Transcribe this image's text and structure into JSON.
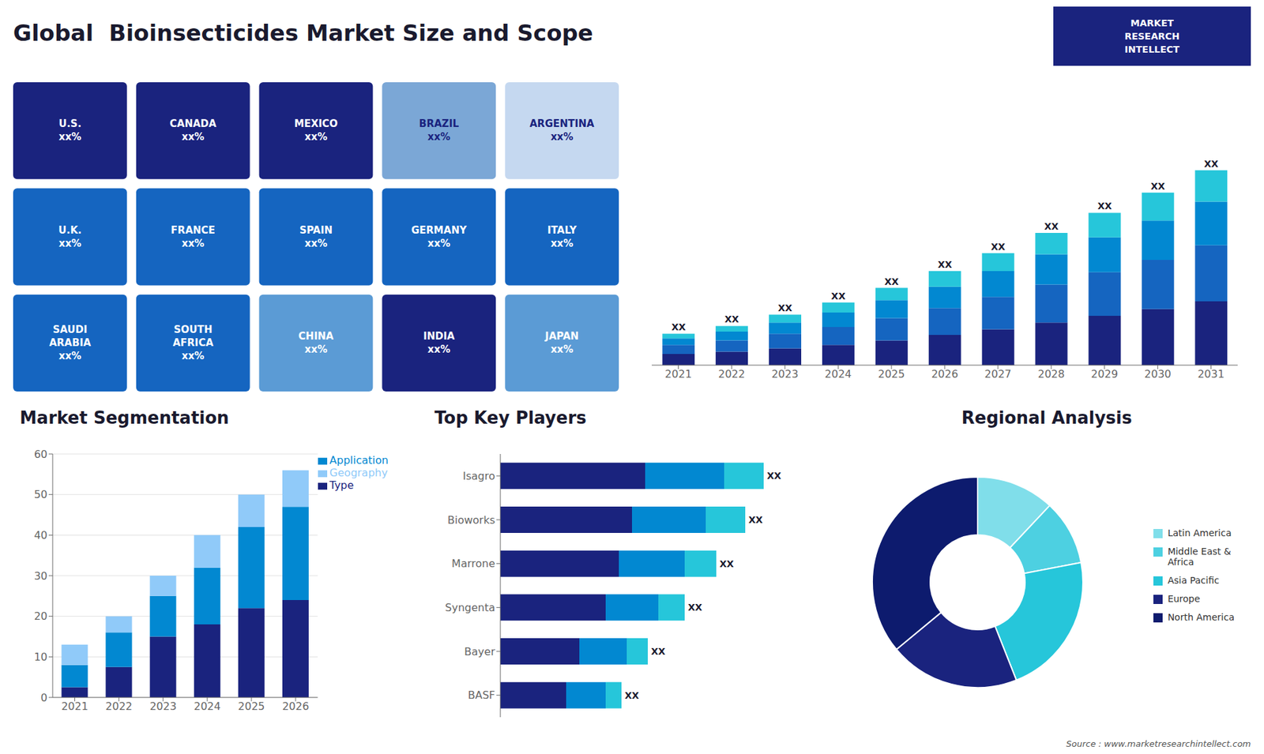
{
  "title": "Global  Bioinsecticides Market Size and Scope",
  "annotations": [
    "MARKET\nRESEARCH\nINTELLECT",
    "Source : www.marketresearchintellect.com"
  ],
  "chart_data": [
    {
      "type": "map",
      "categories": [
        "U.S.",
        "CANADA",
        "MEXICO",
        "BRAZIL",
        "ARGENTINA",
        "U.K.",
        "FRANCE",
        "SPAIN",
        "GERMANY",
        "ITALY",
        "SAUDI\nARABIA",
        "SOUTH\nAFRICA",
        "CHINA",
        "INDIA",
        "JAPAN"
      ],
      "annotations": [
        "xx%",
        "xx%",
        "xx%",
        "xx%",
        "xx%",
        "xx%",
        "xx%",
        "xx%",
        "xx%",
        "xx%",
        "xx%",
        "xx%",
        "xx%",
        "xx%",
        "xx%"
      ],
      "colors": [
        "#1a237e",
        "#1a237e",
        "#1a237e",
        "#7ba7d6",
        "#c5d8f0",
        "#1565c0",
        "#1565c0",
        "#1565c0",
        "#1565c0",
        "#1565c0",
        "#1565c0",
        "#1565c0",
        "#5b9bd5",
        "#1a237e",
        "#5b9bd5"
      ]
    },
    {
      "type": "bar",
      "stacked": true,
      "categories": [
        "2021",
        "2022",
        "2023",
        "2024",
        "2025",
        "2026",
        "2027",
        "2028",
        "2029",
        "2030",
        "2031"
      ],
      "series": [
        {
          "color": "#1a237e",
          "values": [
            1.0,
            1.2,
            1.5,
            1.8,
            2.2,
            2.7,
            3.2,
            3.8,
            4.4,
            5.0,
            5.7
          ]
        },
        {
          "color": "#1565c0",
          "values": [
            0.8,
            1.0,
            1.3,
            1.6,
            2.0,
            2.4,
            2.9,
            3.4,
            3.9,
            4.4,
            5.0
          ]
        },
        {
          "color": "#0288d1",
          "values": [
            0.6,
            0.8,
            1.0,
            1.3,
            1.6,
            1.9,
            2.3,
            2.7,
            3.1,
            3.5,
            3.9
          ]
        },
        {
          "color": "#26c6da",
          "values": [
            0.4,
            0.5,
            0.7,
            0.9,
            1.1,
            1.4,
            1.6,
            1.9,
            2.2,
            2.5,
            2.8
          ]
        }
      ],
      "ylim": [
        0,
        23.49
      ],
      "tick_labels": "x",
      "grid": false,
      "annotations": [
        "XX"
      ]
    },
    {
      "type": "bar",
      "title": "Market Segmentation",
      "stacked": true,
      "categories": [
        "2021",
        "2022",
        "2023",
        "2024",
        "2025",
        "2026"
      ],
      "series": [
        {
          "name": "Type",
          "color": "#1a237e",
          "values": [
            2.5,
            7.5,
            15,
            18,
            22,
            24
          ]
        },
        {
          "name": "Application",
          "color": "#0288d1",
          "values": [
            5.5,
            8.5,
            10,
            14,
            20,
            23
          ]
        },
        {
          "name": "Geography",
          "color": "#90caf9",
          "values": [
            5.0,
            4.0,
            5,
            8,
            8,
            9
          ]
        }
      ],
      "ylim": [
        0,
        60
      ],
      "yticks": [
        0,
        10,
        20,
        30,
        40,
        50,
        60
      ],
      "grid": true,
      "legend": "right"
    },
    {
      "type": "bar",
      "title": "Top Key Players",
      "orientation": "horizontal",
      "stacked": true,
      "categories": [
        "Isagro",
        "Bioworks",
        "Marrone",
        "Syngenta",
        "Bayer",
        "BASF"
      ],
      "series": [
        {
          "color": "#1a237e",
          "values": [
            5.5,
            5.0,
            4.5,
            4.0,
            3.0,
            2.5
          ]
        },
        {
          "color": "#0288d1",
          "values": [
            3.0,
            2.8,
            2.5,
            2.0,
            1.8,
            1.5
          ]
        },
        {
          "color": "#26c6da",
          "values": [
            1.5,
            1.5,
            1.2,
            1.0,
            0.8,
            0.6
          ]
        }
      ],
      "xlim": [
        0,
        11
      ],
      "tick_labels": "y",
      "grid": false,
      "annotations": [
        "XX"
      ]
    },
    {
      "type": "pie",
      "title": "Regional Analysis",
      "categories": [
        "Latin America",
        "Middle East &\nAfrica",
        "Asia Pacific",
        "Europe",
        "North America"
      ],
      "values": [
        12,
        10,
        22,
        20,
        36
      ],
      "colors": [
        "#80deea",
        "#4dd0e1",
        "#26c6da",
        "#1a237e",
        "#0d1b6e"
      ],
      "legend": "right"
    }
  ]
}
